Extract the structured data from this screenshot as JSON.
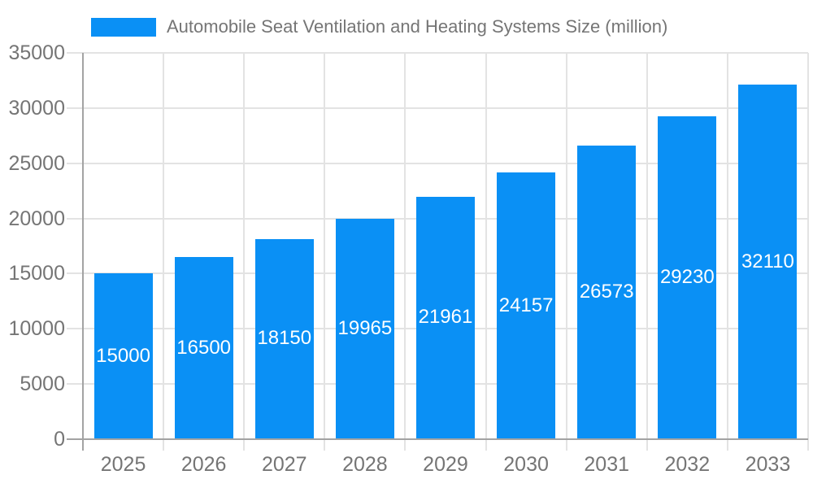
{
  "legend": {
    "label": "Automobile Seat Ventilation and Heating Systems Size (million)",
    "swatch_color": "#0a90f5"
  },
  "chart_data": {
    "type": "bar",
    "title": "Automobile Seat Ventilation and Heating Systems Size (million)",
    "categories": [
      "2025",
      "2026",
      "2027",
      "2028",
      "2029",
      "2030",
      "2031",
      "2032",
      "2033"
    ],
    "values": [
      15000,
      16500,
      18150,
      19965,
      21961,
      24157,
      26573,
      29230,
      32110
    ],
    "xlabel": "",
    "ylabel": "",
    "ylim": [
      0,
      35000
    ],
    "ytick_step": 5000,
    "yticks": [
      0,
      5000,
      10000,
      15000,
      20000,
      25000,
      30000,
      35000
    ],
    "grid": true,
    "legend_position": "top-left",
    "bar_label_style": "inside-center-white",
    "colors": {
      "bar": "#0a90f5",
      "bar_label": "#ffffff",
      "axis_text": "#757575",
      "title_text": "#757575",
      "gridline": "#e3e3e3",
      "axis_line": "#a3a3a3",
      "background": "#ffffff"
    }
  }
}
